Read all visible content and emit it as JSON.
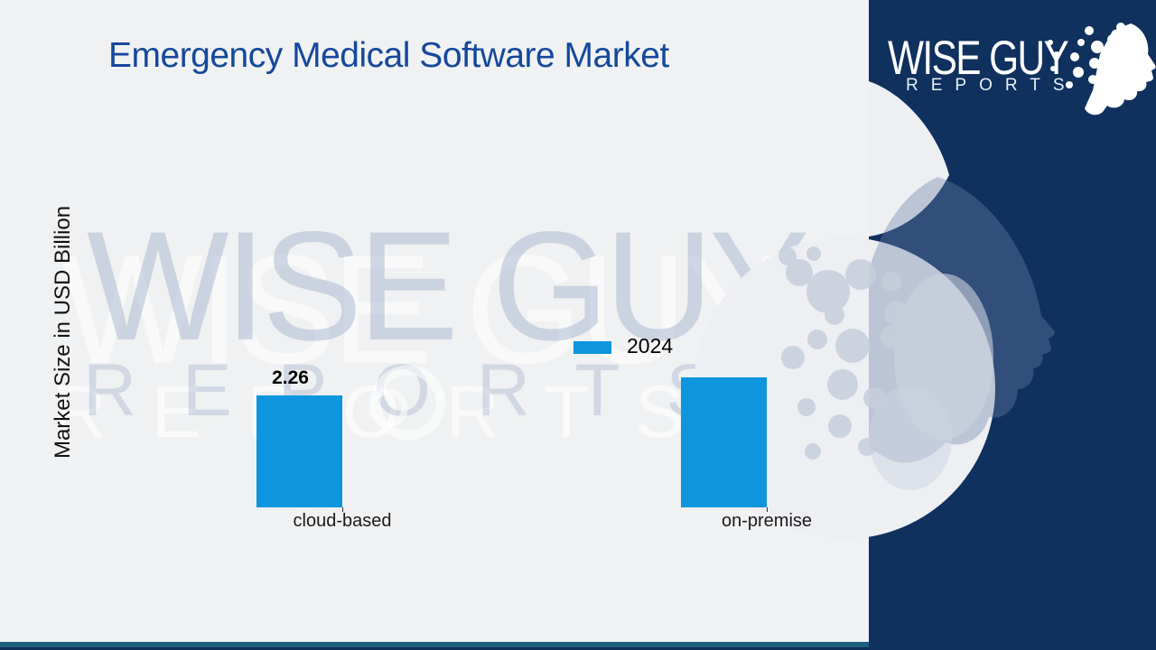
{
  "title": "Emergency Medical Software Market",
  "watermark": {
    "line1": "WISE GUY",
    "line2": "REPORTS"
  },
  "logo": {
    "brand": "WISE GUY",
    "sub": "REPORTS",
    "head_icon": "dotted-face-profile-icon"
  },
  "legend": {
    "year": "2024"
  },
  "chart_data": {
    "type": "bar",
    "title": "Emergency Medical Software Market",
    "xlabel": "",
    "ylabel": "Market Size in USD Billion",
    "categories": [
      "cloud-based",
      "on-premise"
    ],
    "series": [
      {
        "name": "2024",
        "values": [
          2.26,
          2.63
        ]
      }
    ],
    "value_labels": [
      "2.26",
      ""
    ],
    "ylim": [
      0,
      2.8
    ],
    "grid": false,
    "legend_position": "upper-center",
    "bar_color": "#0d95dd"
  },
  "colors": {
    "background": "#f0f1f2",
    "bar": "#0d95dd",
    "navy_panel": "#10305e",
    "teal_strip": "#1b5f7f",
    "bottom_line": "#0f2d57",
    "title_blue": "#14489c"
  }
}
